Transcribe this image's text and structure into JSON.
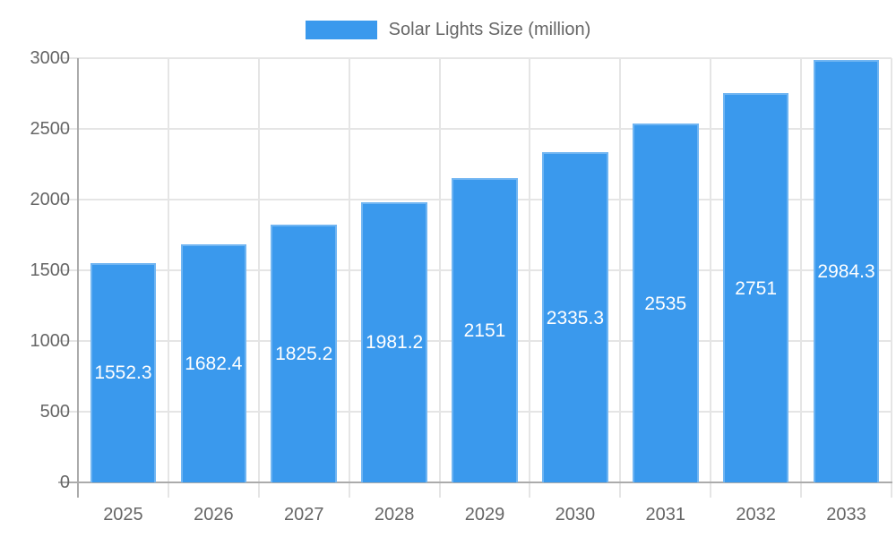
{
  "chart_data": {
    "type": "bar",
    "title": "Solar Lights Size (million)",
    "legend": {
      "label": "Solar Lights Size (million)",
      "position": "top"
    },
    "categories": [
      "2025",
      "2026",
      "2027",
      "2028",
      "2029",
      "2030",
      "2031",
      "2032",
      "2033"
    ],
    "series": [
      {
        "name": "Solar Lights Size (million)",
        "values": [
          1552.3,
          1682.4,
          1825.2,
          1981.2,
          2151,
          2335.3,
          2535,
          2751,
          2984.3
        ]
      }
    ],
    "value_labels": [
      "1552.3",
      "1682.4",
      "1825.2",
      "1981.2",
      "2151",
      "2335.3",
      "2535",
      "2751",
      "2984.3"
    ],
    "xlabel": "",
    "ylabel": "",
    "ylim": [
      0,
      3000
    ],
    "ytick_step": 500,
    "yticks": [
      "0",
      "500",
      "1000",
      "1500",
      "2000",
      "2500",
      "3000"
    ],
    "grid": true,
    "legend_position": "top-center",
    "colors": {
      "bar": "#3A99ED",
      "value_label": "#FFFFFF",
      "axis_text": "#666666",
      "grid_line": "#E5E5E5",
      "axis_border": "#ABABAB",
      "background": "#FFFFFF"
    }
  }
}
